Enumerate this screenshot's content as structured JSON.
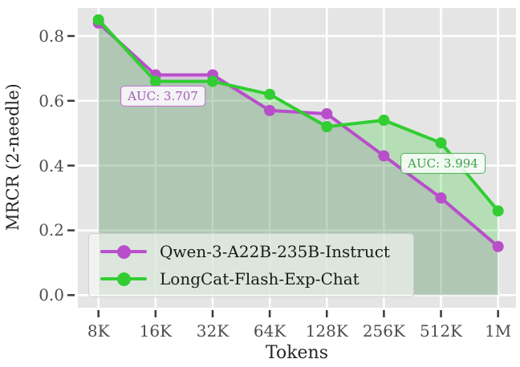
{
  "chart_data": {
    "type": "line",
    "title": "",
    "xlabel": "Tokens",
    "ylabel": "MRCR (2-needle)",
    "categories": [
      "8K",
      "16K",
      "32K",
      "64K",
      "128K",
      "256K",
      "512K",
      "1M"
    ],
    "yticks": [
      "0.0",
      "0.2",
      "0.4",
      "0.6",
      "0.8"
    ],
    "ylim": [
      -0.04,
      0.89
    ],
    "grid": true,
    "legend_position": "lower left",
    "plot_background": "#e5e5e5",
    "gridline_color": "#ffffff",
    "tick_color": "#3a3a3a",
    "series": [
      {
        "name": "Qwen-3-A22B-235B-Instruct",
        "color": "#b94ecb",
        "fill": "rgba(186,85,211,0.22)",
        "values": [
          0.84,
          0.68,
          0.68,
          0.57,
          0.56,
          0.43,
          0.3,
          0.15
        ]
      },
      {
        "name": "LongCat-Flash-Exp-Chat",
        "color": "#32cd32",
        "fill": "rgba(50,205,50,0.26)",
        "values": [
          0.85,
          0.66,
          0.66,
          0.62,
          0.52,
          0.54,
          0.47,
          0.26
        ]
      }
    ],
    "annotations": [
      {
        "text": "AUC: 3.707",
        "color": "#a35ab5",
        "border": "#c06fd0",
        "series": "Qwen-3-A22B-235B-Instruct"
      },
      {
        "text": "AUC: 3.994",
        "color": "#3f9e4d",
        "border": "#4aae57",
        "series": "LongCat-Flash-Exp-Chat"
      }
    ]
  }
}
